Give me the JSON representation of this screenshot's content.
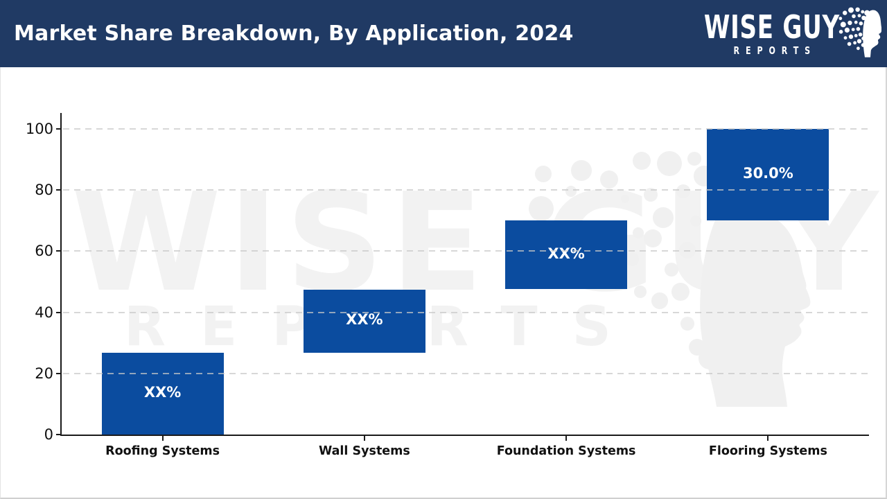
{
  "header": {
    "title": "Market Share Breakdown, By Application, 2024",
    "logo": {
      "primary": "WISE GUY",
      "secondary": "REPORTS"
    }
  },
  "watermark": {
    "primary": "WISE GUY",
    "secondary": "REPORTS"
  },
  "chart_data": {
    "type": "bar",
    "subtype": "waterfall",
    "title": "Market Share Breakdown, By Application, 2024",
    "categories": [
      "Roofing Systems",
      "Wall Systems",
      "Foundation Systems",
      "Flooring Systems"
    ],
    "bars": [
      {
        "category": "Roofing Systems",
        "start": 0,
        "end": 26.8,
        "label": "XX%"
      },
      {
        "category": "Wall Systems",
        "start": 26.8,
        "end": 47.5,
        "label": "XX%"
      },
      {
        "category": "Foundation Systems",
        "start": 47.5,
        "end": 70.0,
        "label": "XX%"
      },
      {
        "category": "Flooring Systems",
        "start": 70.0,
        "end": 100.0,
        "label": "30.0%"
      }
    ],
    "xlabel": "",
    "ylabel": "",
    "ylim": [
      0,
      100
    ],
    "yticks": [
      0,
      20,
      40,
      60,
      80,
      100
    ],
    "grid": "horizontal-dashed",
    "legend": "none",
    "bar_color": "#0b4c9f"
  },
  "colors": {
    "header_bg": "#203a64",
    "bar": "#0b4c9f",
    "grid": "#d3d3d3",
    "axis": "#1a1a1a",
    "watermark": "#f2f2f2",
    "bar_label_text": "#ffffff",
    "tick_text": "#111111"
  }
}
